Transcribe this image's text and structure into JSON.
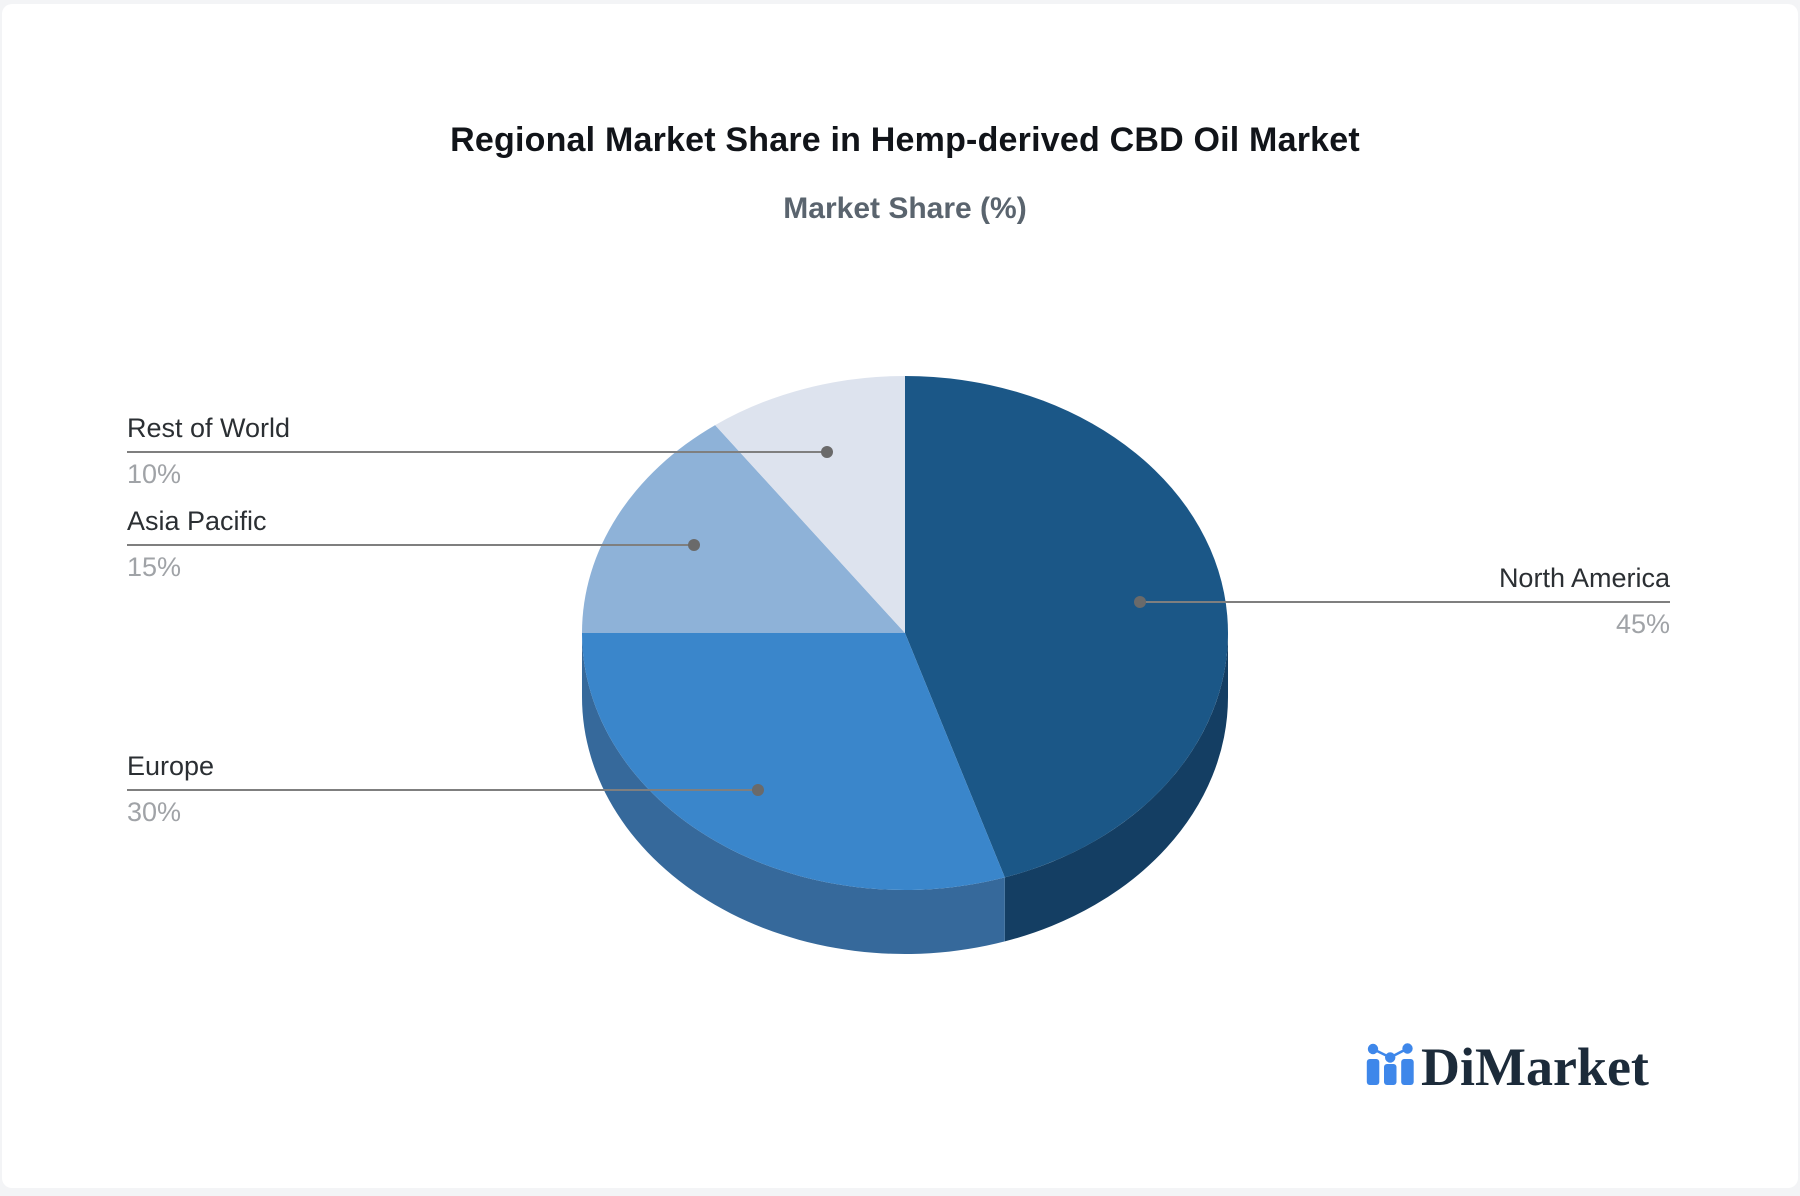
{
  "page": {
    "background_color": "#F3F4F6",
    "card_color": "#FFFFFF"
  },
  "header": {
    "title": "Regional Market Share in Hemp-derived CBD Oil Market",
    "subtitle": "Market Share (%)",
    "title_color": "#111419",
    "subtitle_color": "#5A646E"
  },
  "chart_data": {
    "type": "pie",
    "style": "3d",
    "title": "Regional Market Share in Hemp-derived CBD Oil Market",
    "subtitle": "Market Share (%)",
    "unit": "%",
    "start_angle_deg": 0,
    "direction": "clockwise",
    "legend_position": "callout-labels",
    "slices": [
      {
        "label": "North America",
        "value": 45,
        "percent_label": "45%",
        "color": "#1B5787",
        "side_color": "#143E63",
        "label_side": "right"
      },
      {
        "label": "Europe",
        "value": 30,
        "percent_label": "30%",
        "color": "#3A86CB",
        "side_color": "#36699B",
        "label_side": "left"
      },
      {
        "label": "Asia Pacific",
        "value": 15,
        "percent_label": "15%",
        "color": "#8EB2D8",
        "side_color": null,
        "label_side": "left"
      },
      {
        "label": "Rest of World",
        "value": 10,
        "percent_label": "10%",
        "color": "#DDE3EE",
        "side_color": null,
        "label_side": "left"
      }
    ],
    "callout_style": {
      "line_color": "#7F7F7F",
      "dot_color": "#6A6A6A",
      "label_color": "#2B2F33",
      "percent_color": "#A0A3A7"
    }
  },
  "branding": {
    "logo_text": "DiMarket",
    "logo_icon": "bar-line-chart-icon",
    "icon_color": "#3E87EA",
    "text_color": "#1C2B3A"
  }
}
